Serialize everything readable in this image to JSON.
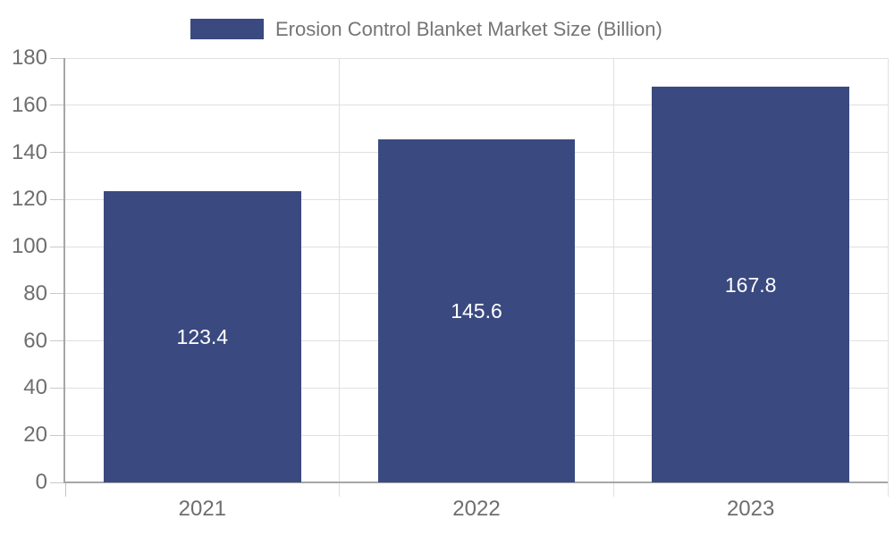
{
  "chart_data": {
    "type": "bar",
    "title": "Erosion Control Blanket Market Size (Billion)",
    "categories": [
      "2021",
      "2022",
      "2023"
    ],
    "values": [
      123.4,
      145.6,
      167.8
    ],
    "value_labels": [
      "123.4",
      "145.6",
      "167.8"
    ],
    "series": [
      {
        "name": "Erosion Control Blanket Market Size (Billion)",
        "values": [
          123.4,
          145.6,
          167.8
        ]
      }
    ],
    "xlabel": "",
    "ylabel": "",
    "ylim": [
      0,
      180
    ],
    "ytick_step": 20,
    "yticks": [
      0,
      20,
      40,
      60,
      80,
      100,
      120,
      140,
      160,
      180
    ],
    "grid": true,
    "legend_position": "top-center",
    "value_label_position": "inside-center",
    "colors": {
      "bar": "#3A4A80",
      "value_label": "#FFFFFF",
      "axis_label": "#6E6E6E",
      "legend_text": "#757575",
      "gridline": "#E0E0E0",
      "axis_line": "#A6A6A6",
      "tick": "#C9C9C9",
      "edge_tick": "#BCC3D6",
      "background": "#FFFFFF"
    }
  }
}
